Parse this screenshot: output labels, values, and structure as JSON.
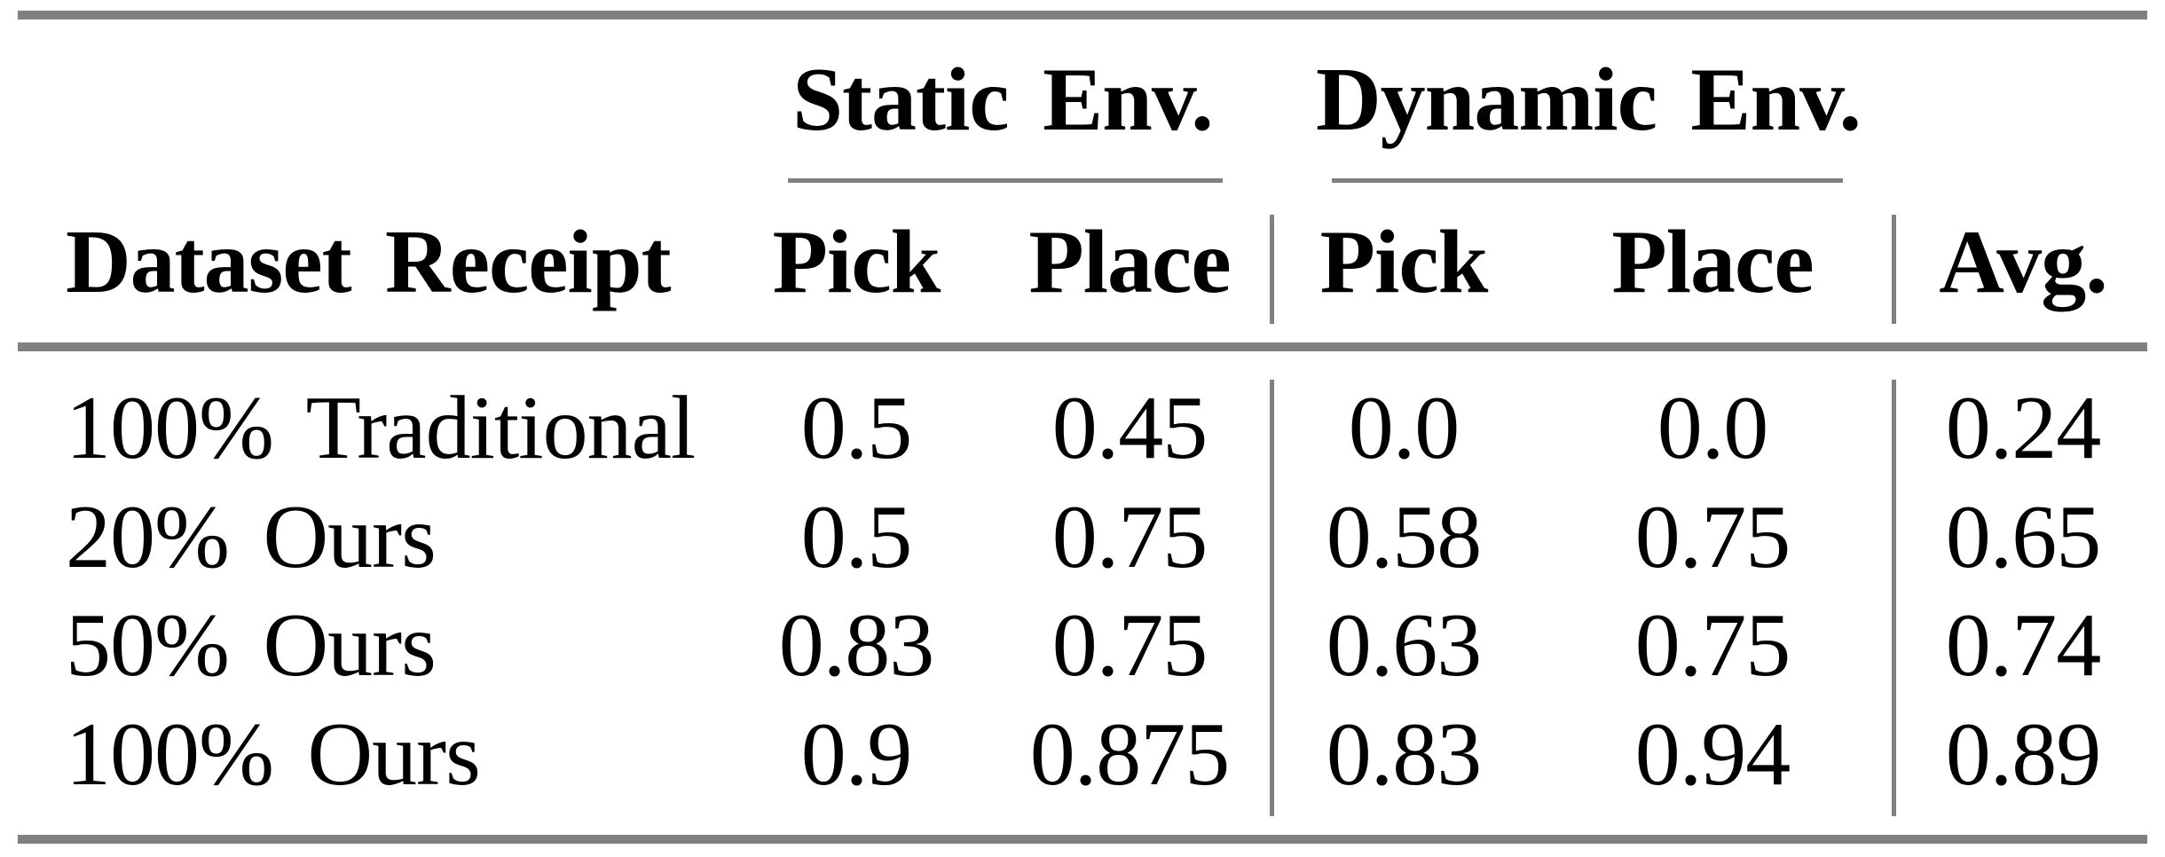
{
  "figure": {
    "kind": "paper-results-table",
    "background_color": "#ffffff",
    "text_color": "#000000",
    "rule_color": "#808080"
  },
  "table": {
    "group_headers": [
      "Static Env.",
      "Dynamic Env."
    ],
    "column_headers": [
      "Dataset Receipt",
      "Pick",
      "Place",
      "Pick",
      "Place",
      "Avg."
    ],
    "rows": [
      {
        "label": "100% Traditional",
        "values": [
          "0.5",
          "0.45",
          "0.0",
          "0.0",
          "0.24"
        ]
      },
      {
        "label": "20% Ours",
        "values": [
          "0.5",
          "0.75",
          "0.58",
          "0.75",
          "0.65"
        ]
      },
      {
        "label": "50% Ours",
        "values": [
          "0.83",
          "0.75",
          "0.63",
          "0.75",
          "0.74"
        ]
      },
      {
        "label": "100% Ours",
        "values": [
          "0.9",
          "0.875",
          "0.83",
          "0.94",
          "0.89"
        ]
      }
    ]
  },
  "chart_data": {
    "type": "table",
    "title": "",
    "row_header": "Dataset Receipt",
    "column_groups": [
      {
        "label": "Static Env.",
        "columns": [
          "Pick",
          "Place"
        ]
      },
      {
        "label": "Dynamic Env.",
        "columns": [
          "Pick",
          "Place"
        ]
      },
      {
        "label": "",
        "columns": [
          "Avg."
        ]
      }
    ],
    "rows": [
      {
        "label": "100% Traditional",
        "static_pick": 0.5,
        "static_place": 0.45,
        "dynamic_pick": 0.0,
        "dynamic_place": 0.0,
        "avg": 0.24
      },
      {
        "label": "20% Ours",
        "static_pick": 0.5,
        "static_place": 0.75,
        "dynamic_pick": 0.58,
        "dynamic_place": 0.75,
        "avg": 0.65
      },
      {
        "label": "50% Ours",
        "static_pick": 0.83,
        "static_place": 0.75,
        "dynamic_pick": 0.63,
        "dynamic_place": 0.75,
        "avg": 0.74
      },
      {
        "label": "100% Ours",
        "static_pick": 0.9,
        "static_place": 0.875,
        "dynamic_pick": 0.83,
        "dynamic_place": 0.94,
        "avg": 0.89
      }
    ]
  }
}
